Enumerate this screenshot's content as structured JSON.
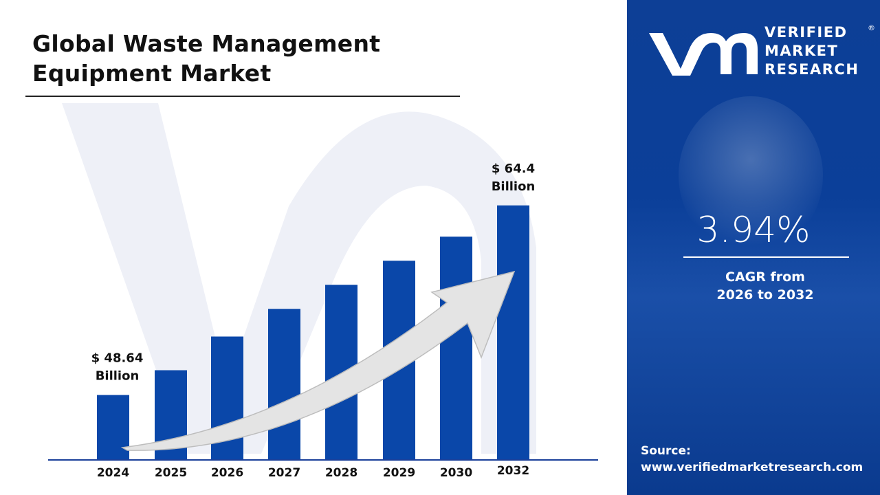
{
  "title_line1": "Global Waste Management",
  "title_line2": "Equipment Market",
  "brand": {
    "line1": "VERIFIED",
    "line2": "MARKET",
    "line3": "RESEARCH",
    "registered": "®",
    "logo_letters": "vmr"
  },
  "cagr": {
    "value": "3.94%",
    "label_line1": "CAGR from",
    "label_line2": "2026 to 2032"
  },
  "source": {
    "label": "Source:",
    "url": "www.verifiedmarketresearch.com"
  },
  "colors": {
    "bar": "#0a47a9",
    "panel": "#0d3f96",
    "arrow": "#e6e6e6"
  },
  "chart_data": {
    "type": "bar",
    "categories": [
      "2024",
      "2025",
      "2026",
      "2027",
      "2028",
      "2029",
      "2030",
      "2032"
    ],
    "values": [
      48.64,
      50.7,
      53.5,
      55.8,
      57.8,
      59.8,
      61.8,
      64.4
    ],
    "unit": "USD Billion",
    "data_labels": [
      {
        "category": "2024",
        "line1": "$ 48.64",
        "line2": "Billion"
      },
      {
        "category": "2032",
        "line1": "$ 64.4",
        "line2": "Billion"
      }
    ],
    "ylim": [
      43.3,
      66
    ],
    "grid": false,
    "legend": "none",
    "annotation": "upward trend arrow"
  }
}
